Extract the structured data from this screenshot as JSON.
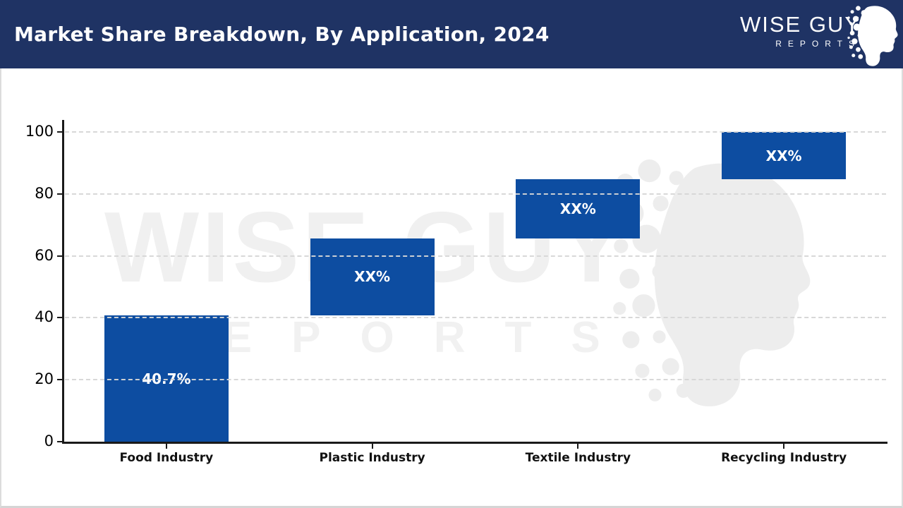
{
  "header": {
    "title": "Market Share Breakdown, By Application, 2024",
    "bg_color": "#1f3364",
    "logo": {
      "name": "WISE GUY",
      "subtitle": "REPORTS",
      "icon": "dotted-head-profile-icon",
      "color": "#ffffff"
    }
  },
  "watermark": {
    "line1": "WISE GUY",
    "line2": "REPORTS",
    "icon": "dotted-head-profile-icon",
    "color": "#f0f0f0"
  },
  "chart_data": {
    "type": "bar",
    "subtype": "waterfall",
    "title": "Market Share Breakdown, By Application, 2024",
    "categories": [
      "Food Industry",
      "Plastic Industry",
      "Textile Industry",
      "Recycling Industry"
    ],
    "segments": [
      {
        "category": "Food Industry",
        "start": 0,
        "end": 40.7,
        "label": "40.7%"
      },
      {
        "category": "Plastic Industry",
        "start": 40.7,
        "end": 65.7,
        "label": "XX%"
      },
      {
        "category": "Textile Industry",
        "start": 65.7,
        "end": 84.7,
        "label": "XX%"
      },
      {
        "category": "Recycling Industry",
        "start": 84.7,
        "end": 100,
        "label": "XX%"
      }
    ],
    "ylim": [
      0,
      100
    ],
    "yticks": [
      0,
      20,
      40,
      60,
      80,
      100
    ],
    "xlabel": "",
    "ylabel": "",
    "grid": "horizontal-dashed",
    "grid_color": "#d6d6d6",
    "bar_color": "#0d4da1",
    "bar_label_color": "#ffffff",
    "axis_color": "#1a1a1a",
    "legend": "none"
  }
}
